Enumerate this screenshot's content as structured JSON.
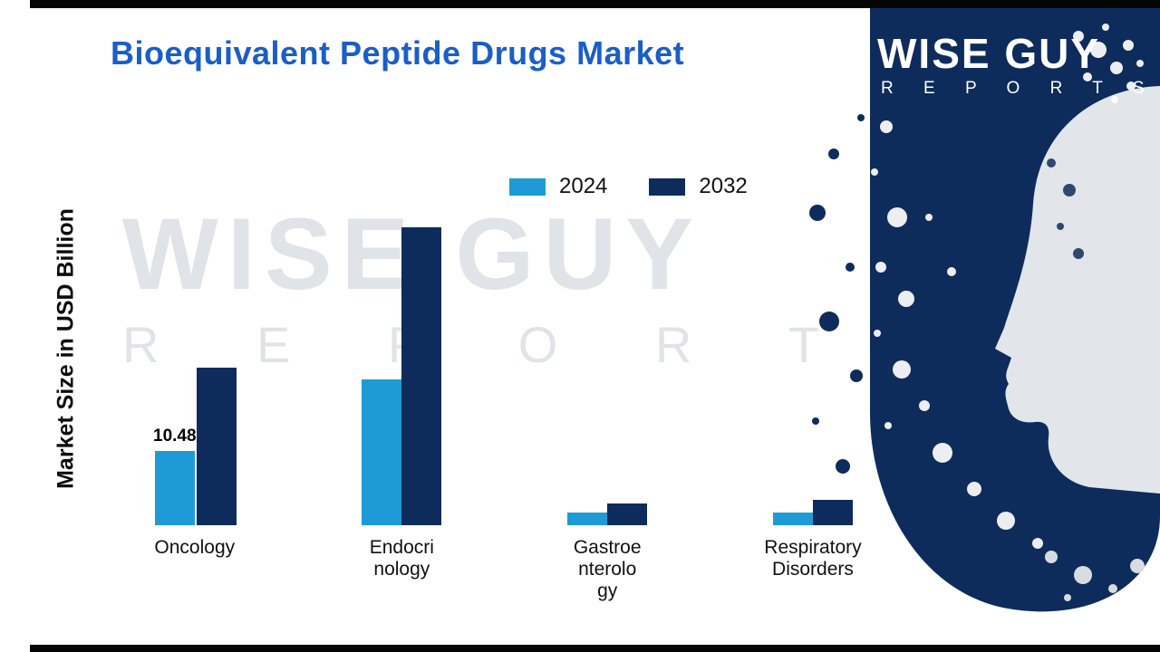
{
  "page_title": "Bioequivalent Peptide Drugs Market",
  "logo": {
    "name_line": "WISE GUY",
    "reports_line": "R E P O R T S"
  },
  "watermark": {
    "name_line": "WISE GUY",
    "reports_line": "R E P O R T S"
  },
  "colors": {
    "accent_blue": "#1E9BD6",
    "accent_navy": "#0D2C5B",
    "title_blue": "#1A5EC8"
  },
  "chart_data": {
    "type": "bar",
    "title": "Bioequivalent Peptide Drugs Market",
    "ylabel": "Market Size in USD Billion",
    "ylim": [
      0,
      46
    ],
    "grid": false,
    "legend_position": "top",
    "categories": [
      "Oncology",
      "Endocrinology",
      "Gastroenterology",
      "Respiratory Disorders"
    ],
    "category_label_lines": [
      [
        "Oncology"
      ],
      [
        "Endocri",
        "nology"
      ],
      [
        "Gastroe",
        "nterolo",
        "gy"
      ],
      [
        "Respiratory",
        "Disorders"
      ]
    ],
    "series": [
      {
        "name": "2024",
        "color": "#1E9BD6",
        "values": [
          10.48,
          20.6,
          1.8,
          1.8
        ]
      },
      {
        "name": "2032",
        "color": "#0D2C5B",
        "values": [
          22.2,
          42.0,
          3.1,
          3.6
        ]
      }
    ],
    "data_labels": [
      {
        "series": "2024",
        "category": "Oncology",
        "text": "10.48"
      }
    ]
  }
}
